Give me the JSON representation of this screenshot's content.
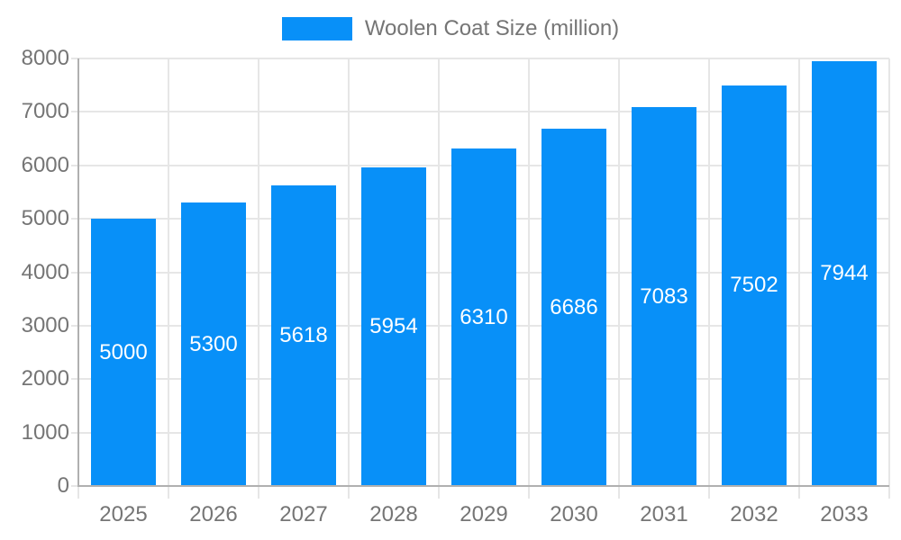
{
  "legend": {
    "label": "Woolen Coat Size (million)"
  },
  "chart_data": {
    "type": "bar",
    "title": "Woolen Coat Size (million)",
    "series_name": "Woolen Coat Size (million)",
    "categories": [
      "2025",
      "2026",
      "2027",
      "2028",
      "2029",
      "2030",
      "2031",
      "2032",
      "2033"
    ],
    "values": [
      5000,
      5300,
      5618,
      5954,
      6310,
      6686,
      7083,
      7502,
      7944
    ],
    "xlabel": "",
    "ylabel": "",
    "ylim": [
      0,
      8000
    ],
    "yticks": [
      0,
      1000,
      2000,
      3000,
      4000,
      5000,
      6000,
      7000,
      8000
    ],
    "grid": true,
    "legend_position": "top-center",
    "bar_labels_inside": true,
    "colors": {
      "bar": "#0890f8",
      "bar_label_text": "#ffffff",
      "axis_text": "#757575",
      "gridline": "#e6e6e6",
      "axis_line": "#b0b0b0",
      "background": "#ffffff"
    }
  }
}
